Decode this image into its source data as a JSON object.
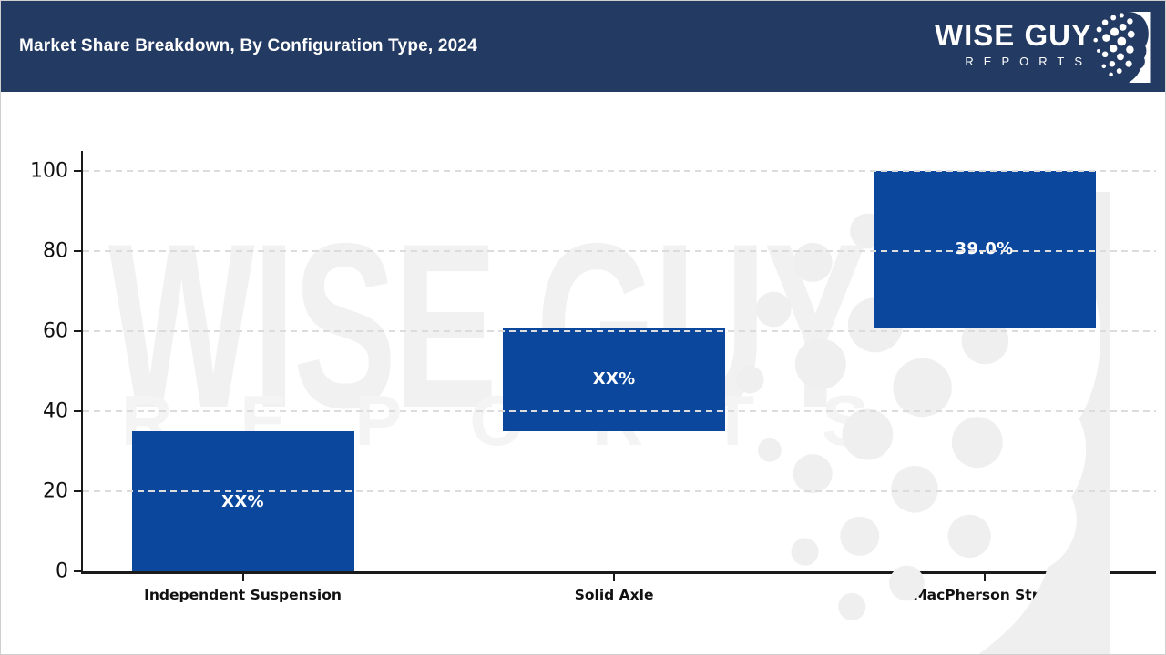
{
  "header": {
    "title": "Market Share Breakdown, By Configuration Type, 2024",
    "logo": {
      "name": "WISE GUY",
      "sub": "REPORTS"
    }
  },
  "watermark": {
    "word": "WISE GUY",
    "sub": "REPORTS"
  },
  "colors": {
    "header_bg": "#233a63",
    "bar": "#0a479d",
    "axis": "#1a1a1a",
    "grid": "#dcdcdc",
    "watermark": "#f1f1f1",
    "bar_label": "#ffffff"
  },
  "chart_data": {
    "type": "bar",
    "subtype": "floating-waterfall",
    "title": "Market Share Breakdown, By Configuration Type, 2024",
    "categories": [
      "Independent Suspension",
      "Solid Axle",
      "MacPherson Strut"
    ],
    "segments": [
      {
        "category": "Independent Suspension",
        "start": 0,
        "end": 35,
        "value": 35,
        "label": "XX%"
      },
      {
        "category": "Solid Axle",
        "start": 35,
        "end": 61,
        "value": 26,
        "label": "XX%"
      },
      {
        "category": "MacPherson Strut",
        "start": 61,
        "end": 100,
        "value": 39,
        "label": "39.0%"
      }
    ],
    "yticks": [
      0,
      20,
      40,
      60,
      80,
      100
    ],
    "ylim": [
      0,
      105
    ],
    "xlabel": "",
    "ylabel": "",
    "grid": "horizontal-dashed-above-bars",
    "legend": "none"
  }
}
